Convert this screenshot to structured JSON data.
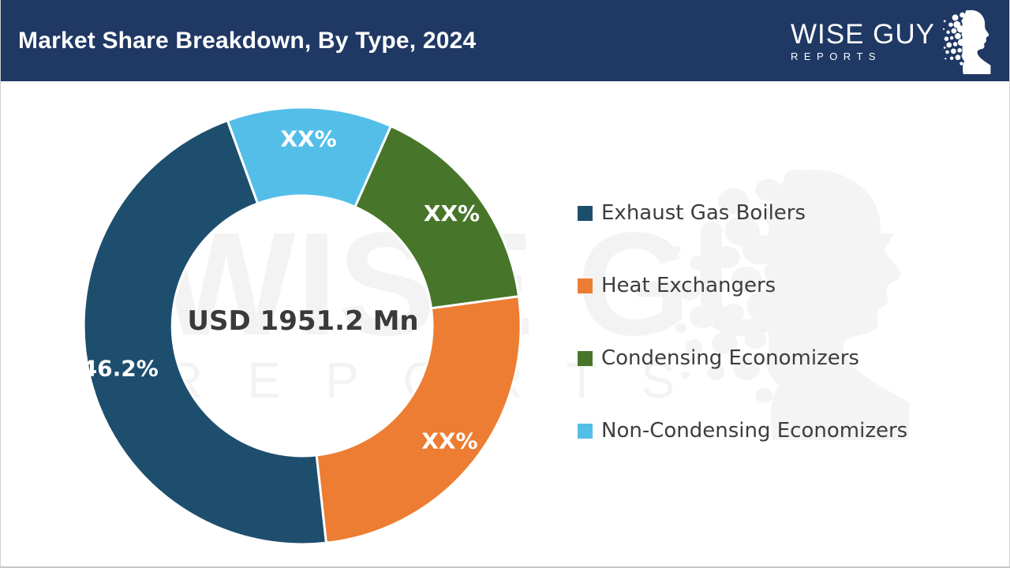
{
  "header": {
    "title": "Market Share Breakdown, By Type, 2024",
    "brand": {
      "name": "WISE GUY",
      "tagline": "REPORTS"
    }
  },
  "watermark": {
    "word": "WISE GUY",
    "reports": "REPORTS"
  },
  "chart_data": {
    "type": "pie",
    "subtype": "donut",
    "title": "Market Share Breakdown, By Type, 2024",
    "center_label": "USD 1951.2 Mn",
    "start_angle_deg": 110,
    "direction": "counterclockwise",
    "legend_position": "right",
    "segments": [
      {
        "label": "Exhaust Gas Boilers",
        "value_pct": 46.2,
        "display": "46.2%",
        "color": "#1E4E6E"
      },
      {
        "label": "Heat Exchangers",
        "value_pct": 25.4,
        "display": "XX%",
        "color": "#EC7D32"
      },
      {
        "label": "Condensing Economizers",
        "value_pct": 16.2,
        "display": "XX%",
        "color": "#47762A"
      },
      {
        "label": "Non-Condensing Economizers",
        "value_pct": 12.2,
        "display": "XX%",
        "color": "#53BFE8"
      }
    ],
    "colors": {
      "header_bg": "#1F3864",
      "text_dark": "#3A3A3A",
      "watermark": "#F3F3F3"
    }
  }
}
